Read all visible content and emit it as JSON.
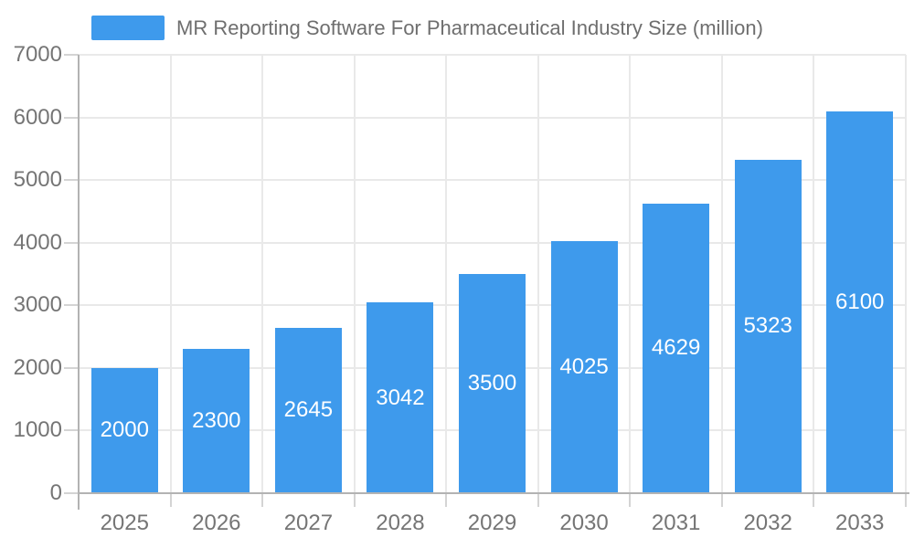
{
  "chart_data": {
    "type": "bar",
    "title": "MR Reporting Software For Pharmaceutical Industry Size (million)",
    "categories": [
      "2025",
      "2026",
      "2027",
      "2028",
      "2029",
      "2030",
      "2031",
      "2032",
      "2033"
    ],
    "values": [
      2000,
      2300,
      2645,
      3042,
      3500,
      4025,
      4629,
      5323,
      6100
    ],
    "xlabel": "",
    "ylabel": "",
    "ylim": [
      0,
      7000
    ],
    "y_ticks": [
      0,
      1000,
      2000,
      3000,
      4000,
      5000,
      6000,
      7000
    ],
    "grid": "on",
    "legend_position": "top-left",
    "bar_color": "#3E9AEC",
    "bar_label_color": "#FFFFFF",
    "axis_label_color": "#757575",
    "title_color": "#6E6E6E",
    "gridline_color": "#E9E9E9",
    "axis_line_color": "#B3B3B3",
    "background_color": "#FFFFFF"
  }
}
